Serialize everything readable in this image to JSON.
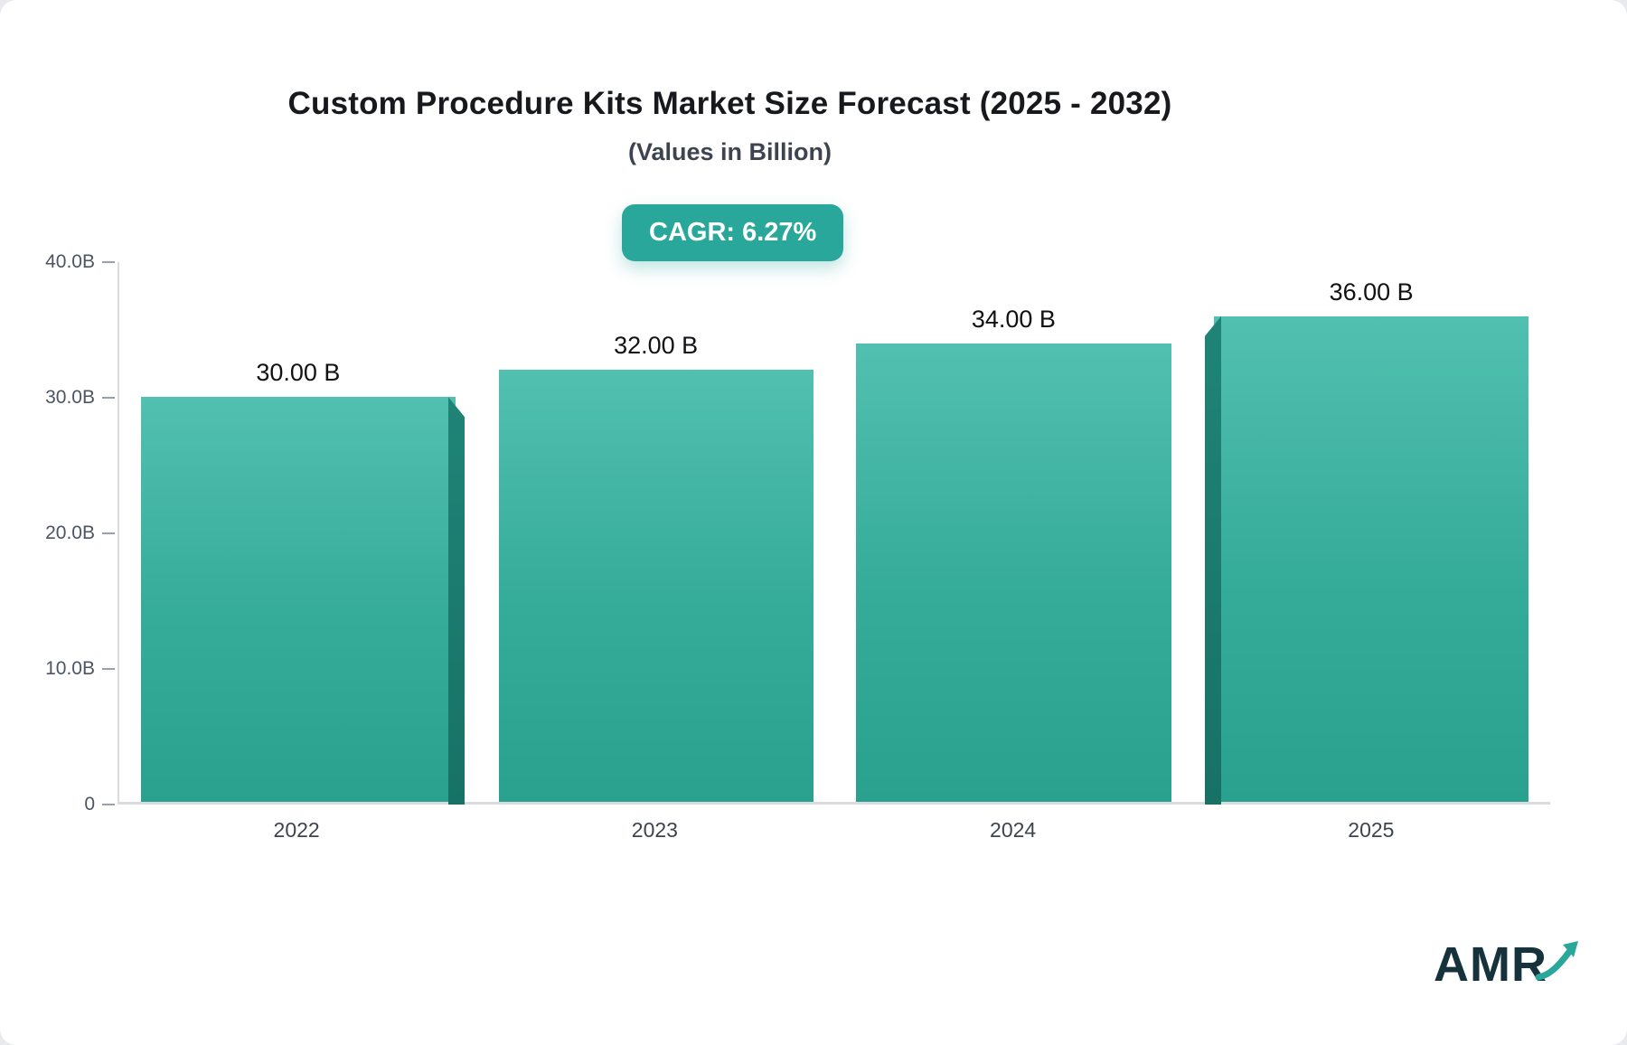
{
  "header": {
    "title": "Custom Procedure Kits Market Size Forecast (2025 - 2032)",
    "subtitle": "(Values in Billion)"
  },
  "badge": {
    "label": "CAGR: 6.27%"
  },
  "chart_data": {
    "type": "bar",
    "title": "Custom Procedure Kits Market Size Forecast (2025 - 2032)",
    "subtitle": "(Values in Billion)",
    "categories": [
      "2022",
      "2023",
      "2024",
      "2025"
    ],
    "values": [
      30,
      32,
      34,
      36
    ],
    "value_labels": [
      "30.00 B",
      "32.00 B",
      "34.00 B",
      "36.00 B"
    ],
    "xlabel": "",
    "ylabel": "",
    "ylim": [
      0,
      40
    ],
    "yticks": [
      {
        "value": 40,
        "label": "40.0B"
      },
      {
        "value": 30,
        "label": "30.0B"
      },
      {
        "value": 20,
        "label": "20.0B"
      },
      {
        "value": 10,
        "label": "10.0B"
      },
      {
        "value": 0,
        "label": "0"
      }
    ],
    "grid": false,
    "legend": false,
    "bar_color_top": "#52c0b0",
    "bar_color_bottom": "#2aa18f",
    "bar_edge_color": "#1f8477",
    "annotation": "CAGR: 6.27%"
  },
  "logo": {
    "text": "AMR",
    "arrow_color": "#2aa79b"
  }
}
